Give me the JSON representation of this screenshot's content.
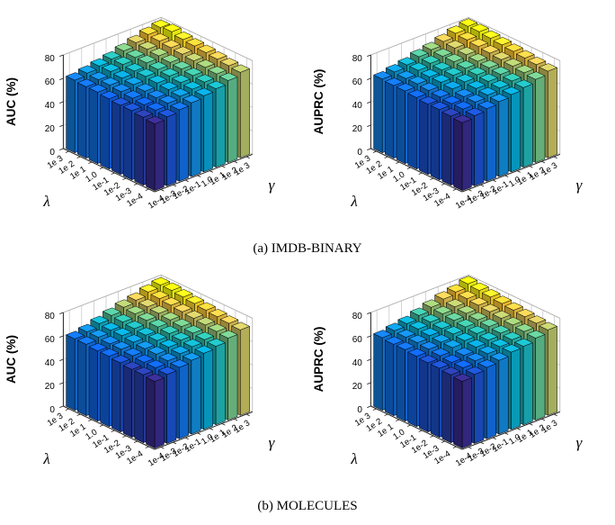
{
  "figure": {
    "captions": [
      {
        "label": "(a) IMDB-BINARY"
      },
      {
        "label": "(b) MOLECULES"
      }
    ]
  },
  "style": {
    "background": "#ffffff",
    "grid_color": "#c9c9c9",
    "box_color": "#b0b0b0",
    "axis_color": "#262626",
    "bar_edge_color": "#000000",
    "colormap": "parula",
    "colormap_stops": [
      "#352a87",
      "#0f5cdd",
      "#1481d6",
      "#06a4ca",
      "#2eb7a4",
      "#87bf77",
      "#d1bb59",
      "#fdc432",
      "#f9fb0e"
    ]
  },
  "chart_data": [
    {
      "type": "bar",
      "projection": "3d",
      "dataset": "IMDB-BINARY",
      "metric": "AUC",
      "zlabel": "AUC (%)",
      "xlabel": "γ",
      "ylabel": "λ",
      "grid": true,
      "zlim": [
        0,
        80
      ],
      "z_ticks": [
        0,
        20,
        40,
        60,
        80
      ],
      "lambda_ticks": [
        "1e 3",
        "1e 2",
        "1e 1",
        "1.0",
        "1e-1",
        "1e-2",
        "1e-3",
        "1e-4"
      ],
      "gamma_ticks": [
        "1e-4",
        "1e-3",
        "1e-2",
        "1e-1",
        "1.0",
        "1e 1",
        "1e 2",
        "1e 3"
      ],
      "values": [
        [
          62,
          64,
          66,
          68,
          71,
          74,
          77,
          79
        ],
        [
          61,
          63,
          66,
          68,
          70,
          73,
          76,
          80
        ],
        [
          61,
          63,
          65,
          67,
          70,
          72,
          75,
          78
        ],
        [
          60,
          62,
          64,
          67,
          69,
          71,
          74,
          77
        ],
        [
          59,
          61,
          63,
          66,
          68,
          70,
          73,
          76
        ],
        [
          59,
          60,
          62,
          65,
          67,
          69,
          72,
          75
        ],
        [
          58,
          60,
          62,
          64,
          66,
          68,
          71,
          74
        ],
        [
          57,
          59,
          61,
          63,
          65,
          67,
          70,
          73
        ]
      ]
    },
    {
      "type": "bar",
      "projection": "3d",
      "dataset": "IMDB-BINARY",
      "metric": "AUPRC",
      "zlabel": "AUPRC (%)",
      "xlabel": "γ",
      "ylabel": "λ",
      "grid": true,
      "zlim": [
        0,
        80
      ],
      "z_ticks": [
        0,
        20,
        40,
        60,
        80
      ],
      "lambda_ticks": [
        "1e 3",
        "1e 2",
        "1e 1",
        "1.0",
        "1e-1",
        "1e-2",
        "1e-3",
        "1e-4"
      ],
      "gamma_ticks": [
        "1e-4",
        "1e-3",
        "1e-2",
        "1e-1",
        "1.0",
        "1e 1",
        "1e 2",
        "1e 3"
      ],
      "values": [
        [
          63,
          65,
          67,
          70,
          72,
          75,
          78,
          80
        ],
        [
          62,
          64,
          67,
          69,
          71,
          74,
          77,
          80
        ],
        [
          62,
          64,
          66,
          68,
          71,
          73,
          76,
          79
        ],
        [
          61,
          63,
          66,
          68,
          70,
          72,
          75,
          78
        ],
        [
          60,
          62,
          65,
          67,
          69,
          71,
          74,
          77
        ],
        [
          60,
          61,
          63,
          66,
          68,
          70,
          73,
          76
        ],
        [
          59,
          61,
          63,
          65,
          67,
          69,
          72,
          75
        ],
        [
          58,
          60,
          62,
          64,
          66,
          68,
          71,
          74
        ]
      ]
    },
    {
      "type": "bar",
      "projection": "3d",
      "dataset": "MOLECULES",
      "metric": "AUC",
      "zlabel": "AUC (%)",
      "xlabel": "γ",
      "ylabel": "λ",
      "grid": true,
      "zlim": [
        0,
        80
      ],
      "z_ticks": [
        0,
        20,
        40,
        60,
        80
      ],
      "lambda_ticks": [
        "1e 3",
        "1e 2",
        "1e 1",
        "1.0",
        "1e-1",
        "1e-2",
        "1e-3",
        "1e-4"
      ],
      "gamma_ticks": [
        "1e-4",
        "1e-3",
        "1e-2",
        "1e-1",
        "1.0",
        "1e 1",
        "1e 2",
        "1e 3"
      ],
      "values": [
        [
          61,
          63,
          66,
          69,
          72,
          74,
          77,
          79
        ],
        [
          61,
          63,
          65,
          68,
          71,
          73,
          76,
          79
        ],
        [
          60,
          62,
          65,
          67,
          70,
          72,
          75,
          78
        ],
        [
          60,
          62,
          64,
          66,
          69,
          71,
          74,
          77
        ],
        [
          59,
          61,
          63,
          66,
          68,
          70,
          73,
          76
        ],
        [
          58,
          60,
          63,
          65,
          67,
          69,
          72,
          75
        ],
        [
          58,
          60,
          62,
          64,
          66,
          68,
          71,
          74
        ],
        [
          57,
          59,
          61,
          63,
          65,
          67,
          70,
          73
        ]
      ]
    },
    {
      "type": "bar",
      "projection": "3d",
      "dataset": "MOLECULES",
      "metric": "AUPRC",
      "zlabel": "AUPRC (%)",
      "xlabel": "γ",
      "ylabel": "λ",
      "grid": true,
      "zlim": [
        0,
        80
      ],
      "z_ticks": [
        0,
        20,
        40,
        60,
        80
      ],
      "lambda_ticks": [
        "1e 3",
        "1e 2",
        "1e 1",
        "1.0",
        "1e-1",
        "1e-2",
        "1e-3",
        "1e-4"
      ],
      "gamma_ticks": [
        "1e-4",
        "1e-3",
        "1e-2",
        "1e-1",
        "1.0",
        "1e 1",
        "1e 2",
        "1e 3"
      ],
      "values": [
        [
          62,
          64,
          66,
          69,
          72,
          75,
          77,
          80
        ],
        [
          61,
          63,
          66,
          68,
          71,
          73,
          76,
          79
        ],
        [
          61,
          63,
          65,
          67,
          70,
          72,
          75,
          78
        ],
        [
          60,
          62,
          64,
          67,
          69,
          71,
          74,
          77
        ],
        [
          59,
          61,
          64,
          66,
          68,
          70,
          73,
          76
        ],
        [
          59,
          60,
          62,
          65,
          67,
          69,
          72,
          75
        ],
        [
          58,
          60,
          62,
          64,
          66,
          68,
          71,
          74
        ],
        [
          57,
          59,
          61,
          63,
          66,
          67,
          70,
          73
        ]
      ]
    }
  ]
}
